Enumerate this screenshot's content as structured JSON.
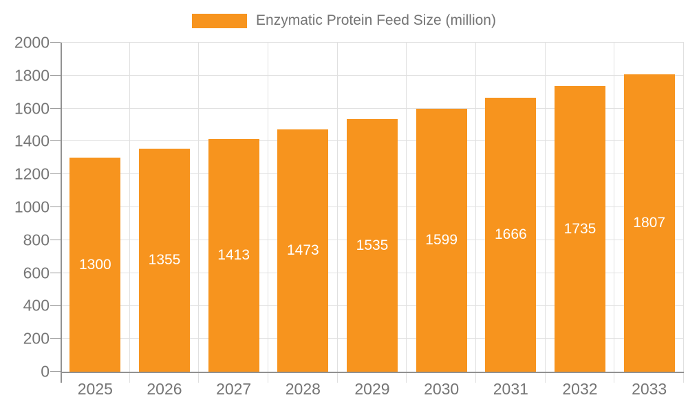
{
  "legend": {
    "label": "Enzymatic Protein Feed Size (million)"
  },
  "colors": {
    "bar": "#f7941e",
    "axis": "#919191",
    "grid": "#e0e0e0",
    "tick_text": "#757575",
    "bar_label_text": "#ffffff"
  },
  "chart_data": {
    "type": "bar",
    "title": "Enzymatic Protein Feed Size (million)",
    "categories": [
      "2025",
      "2026",
      "2027",
      "2028",
      "2029",
      "2030",
      "2031",
      "2032",
      "2033"
    ],
    "series": [
      {
        "name": "Enzymatic Protein Feed Size (million)",
        "color": "#f7941e",
        "values": [
          1300,
          1355,
          1413,
          1473,
          1535,
          1599,
          1666,
          1735,
          1807
        ]
      }
    ],
    "xlabel": "",
    "ylabel": "",
    "ylim": [
      0,
      2000
    ],
    "ytick_step": 200,
    "yticks": [
      0,
      200,
      400,
      600,
      800,
      1000,
      1200,
      1400,
      1600,
      1800,
      2000
    ],
    "grid": true,
    "legend_position": "top",
    "bar_labels_shown": true,
    "bar_label_position": "center"
  }
}
